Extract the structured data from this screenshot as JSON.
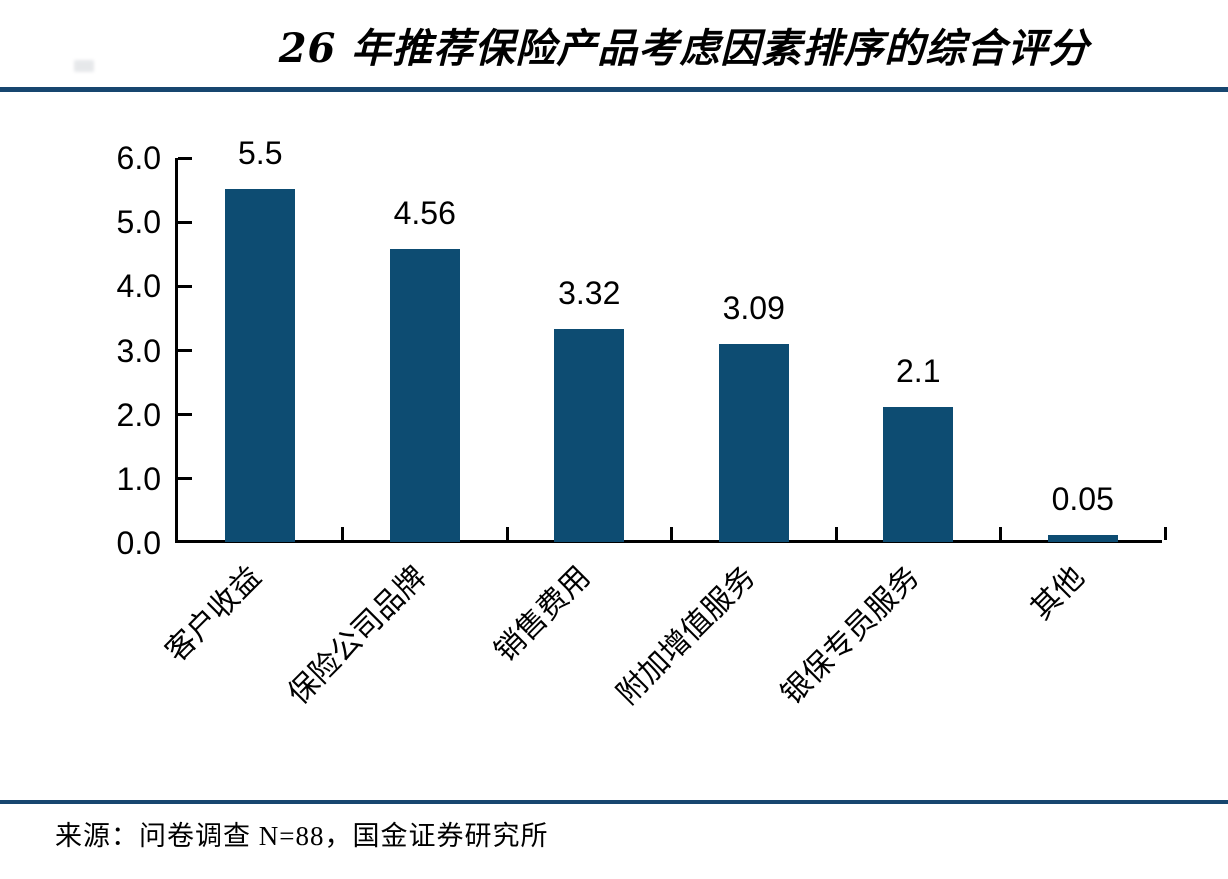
{
  "title": "26 年推荐保险产品考虑因素排序的综合评分",
  "source_note": "来源：问卷调查 N=88，国金证券研究所",
  "colors": {
    "bar": "#0d4c72",
    "divider": "#17466f",
    "axis": "#000000",
    "background": "#ffffff",
    "text": "#000000"
  },
  "chart_data": {
    "type": "bar",
    "title": "26 年推荐保险产品考虑因素排序的综合评分",
    "categories": [
      "客户收益",
      "保险公司品牌",
      "销售费用",
      "附加增值服务",
      "银保专员服务",
      "其他"
    ],
    "values": [
      5.5,
      4.56,
      3.32,
      3.09,
      2.1,
      0.05
    ],
    "value_labels": [
      "5.5",
      "4.56",
      "3.32",
      "3.09",
      "2.1",
      "0.05"
    ],
    "xlabel": "",
    "ylabel": "",
    "ylim": [
      0,
      6
    ],
    "ytick_step": 1.0,
    "ytick_labels": [
      "0.0",
      "1.0",
      "2.0",
      "3.0",
      "4.0",
      "5.0",
      "6.0"
    ],
    "grid": false,
    "legend_position": "none",
    "category_label_rotation_deg": -45,
    "bar_color": "#0d4c72"
  }
}
